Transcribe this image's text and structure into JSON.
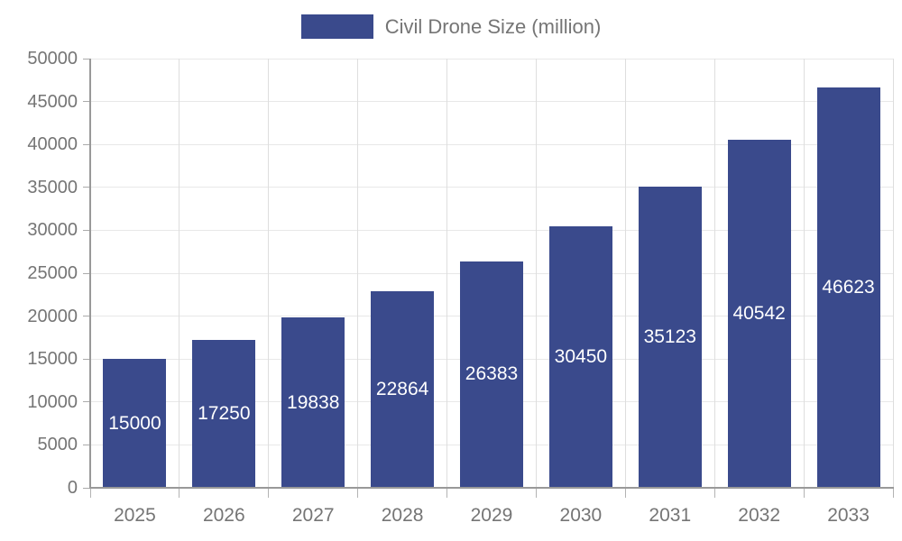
{
  "legend": {
    "label": "Civil Drone Size (million)"
  },
  "chart_data": {
    "type": "bar",
    "title": "",
    "categories": [
      "2025",
      "2026",
      "2027",
      "2028",
      "2029",
      "2030",
      "2031",
      "2032",
      "2033"
    ],
    "series": [
      {
        "name": "Civil Drone Size (million)",
        "values": [
          15000,
          17250,
          19838,
          22864,
          26383,
          30450,
          35123,
          40542,
          46623
        ]
      }
    ],
    "xlabel": "",
    "ylabel": "",
    "ylim": [
      0,
      50000
    ],
    "ytick_step": 5000,
    "ytick_labels": [
      "0",
      "5000",
      "10000",
      "15000",
      "20000",
      "25000",
      "30000",
      "35000",
      "40000",
      "45000",
      "50000"
    ],
    "grid": true,
    "legend_position": "top-center",
    "data_labels": "inside-center",
    "colors": {
      "bar": "#3A4A8C",
      "data_label": "#FFFFFF",
      "axis_text": "#757575",
      "legend_text": "#757575",
      "axis_line": "#999999",
      "gridline_h": "#E8E8E8",
      "gridline_v": "#DEDEDE"
    }
  }
}
